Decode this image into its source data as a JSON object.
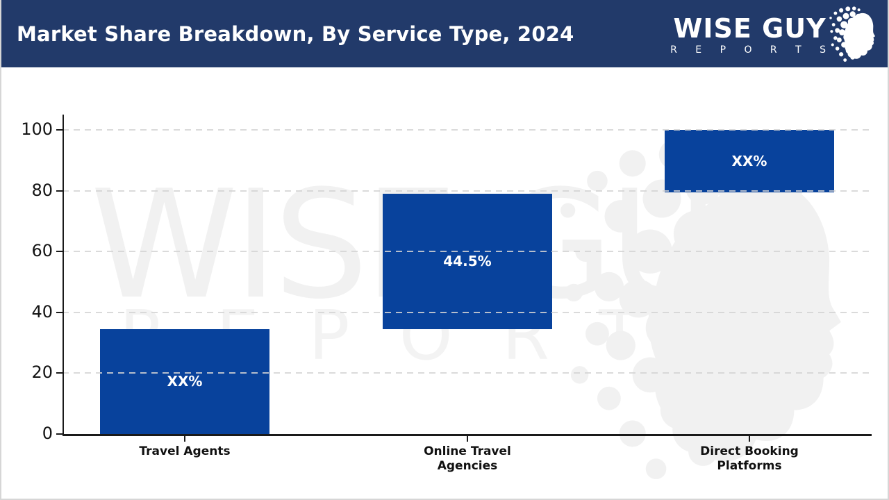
{
  "header": {
    "title": "Market Share Breakdown, By Service Type, 2024",
    "logo": {
      "name": "WISE GUY",
      "sub": "R E P O R T S"
    }
  },
  "watermark": {
    "line1": "WISE GUY",
    "line2": "R E P O R T S"
  },
  "chart_data": {
    "type": "bar",
    "subtype": "floating-segment bars (waterfall-style share breakdown)",
    "title": "Market Share Breakdown, By Service Type, 2024",
    "categories": [
      "Travel Agents",
      "Online Travel\nAgencies",
      "Direct Booking\nPlatforms"
    ],
    "bars": [
      {
        "category": "Travel Agents",
        "start": 0,
        "end": 34.5,
        "label": "XX%"
      },
      {
        "category": "Online Travel Agencies",
        "start": 34.5,
        "end": 79,
        "label": "44.5%"
      },
      {
        "category": "Direct Booking Platforms",
        "start": 79.5,
        "end": 100,
        "label": "XX%"
      }
    ],
    "xlabel": "",
    "ylabel": "",
    "ylim": [
      0,
      100
    ],
    "yticks": [
      "0",
      "20",
      "40",
      "60",
      "80",
      "100"
    ],
    "grid": "horizontal dashed gridlines, drawn above bars",
    "legend": null
  },
  "colors": {
    "header_bg": "#223a6a",
    "bar": "#08429c",
    "grid": "#d9d9d9",
    "axis": "#1a1a1a",
    "bar_label": "#ffffff",
    "watermark": "#f1f1f1",
    "page_bg": "#ffffff",
    "border": "#d6d6d6"
  }
}
